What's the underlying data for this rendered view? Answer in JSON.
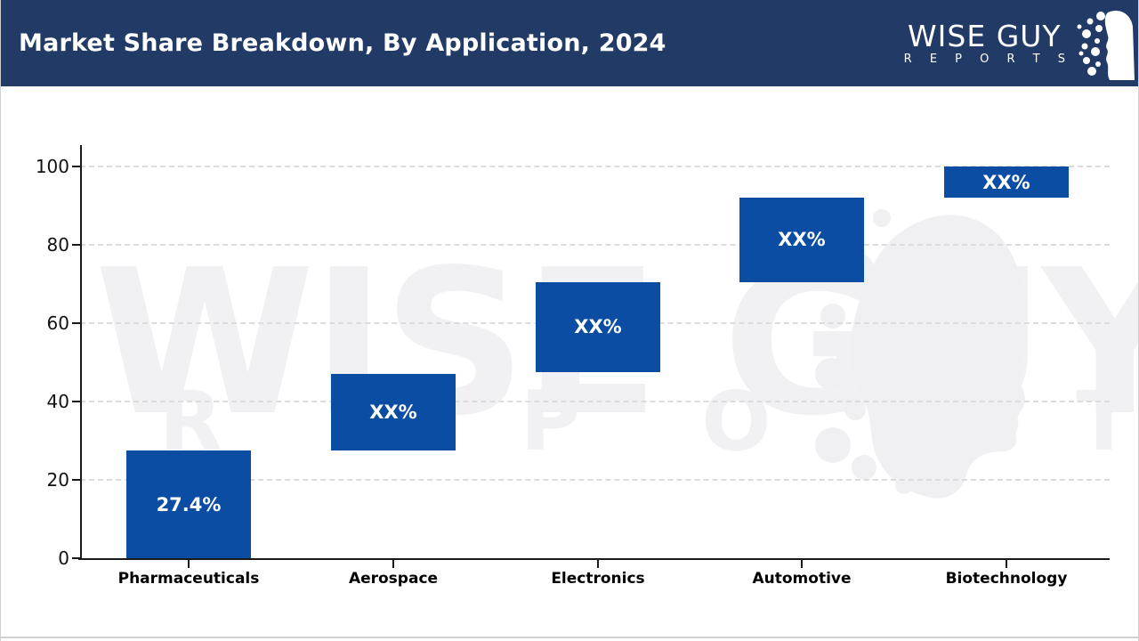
{
  "header": {
    "title": "Market Share Breakdown, By Application, 2024",
    "bg_color": "#213A66",
    "logo": {
      "line1": "WISE GUY",
      "line2": "R E P O R T S"
    }
  },
  "watermark": {
    "line1": "WISE GUY",
    "line2": "R E P O R T S"
  },
  "chart_data": {
    "type": "bar",
    "subtype": "waterfall",
    "title": "Market Share Breakdown, By Application, 2024",
    "categories": [
      "Pharmaceuticals",
      "Aerospace",
      "Electronics",
      "Automotive",
      "Biotechnology"
    ],
    "segments": [
      {
        "category": "Pharmaceuticals",
        "start": 0,
        "end": 27.4,
        "label": "27.4%"
      },
      {
        "category": "Aerospace",
        "start": 27.5,
        "end": 47,
        "label": "XX%"
      },
      {
        "category": "Electronics",
        "start": 47.5,
        "end": 70.5,
        "label": "XX%"
      },
      {
        "category": "Automotive",
        "start": 70.5,
        "end": 92,
        "label": "XX%"
      },
      {
        "category": "Biotechnology",
        "start": 92,
        "end": 100,
        "label": "XX%"
      }
    ],
    "xlabel": "",
    "ylabel": "",
    "ylim": [
      0,
      100
    ],
    "yticks": [
      0,
      20,
      40,
      60,
      80,
      100
    ],
    "grid": "horizontal dashed",
    "legend": "none",
    "bar_color": "#0B4DA2",
    "label_color": "#FFFFFF"
  }
}
